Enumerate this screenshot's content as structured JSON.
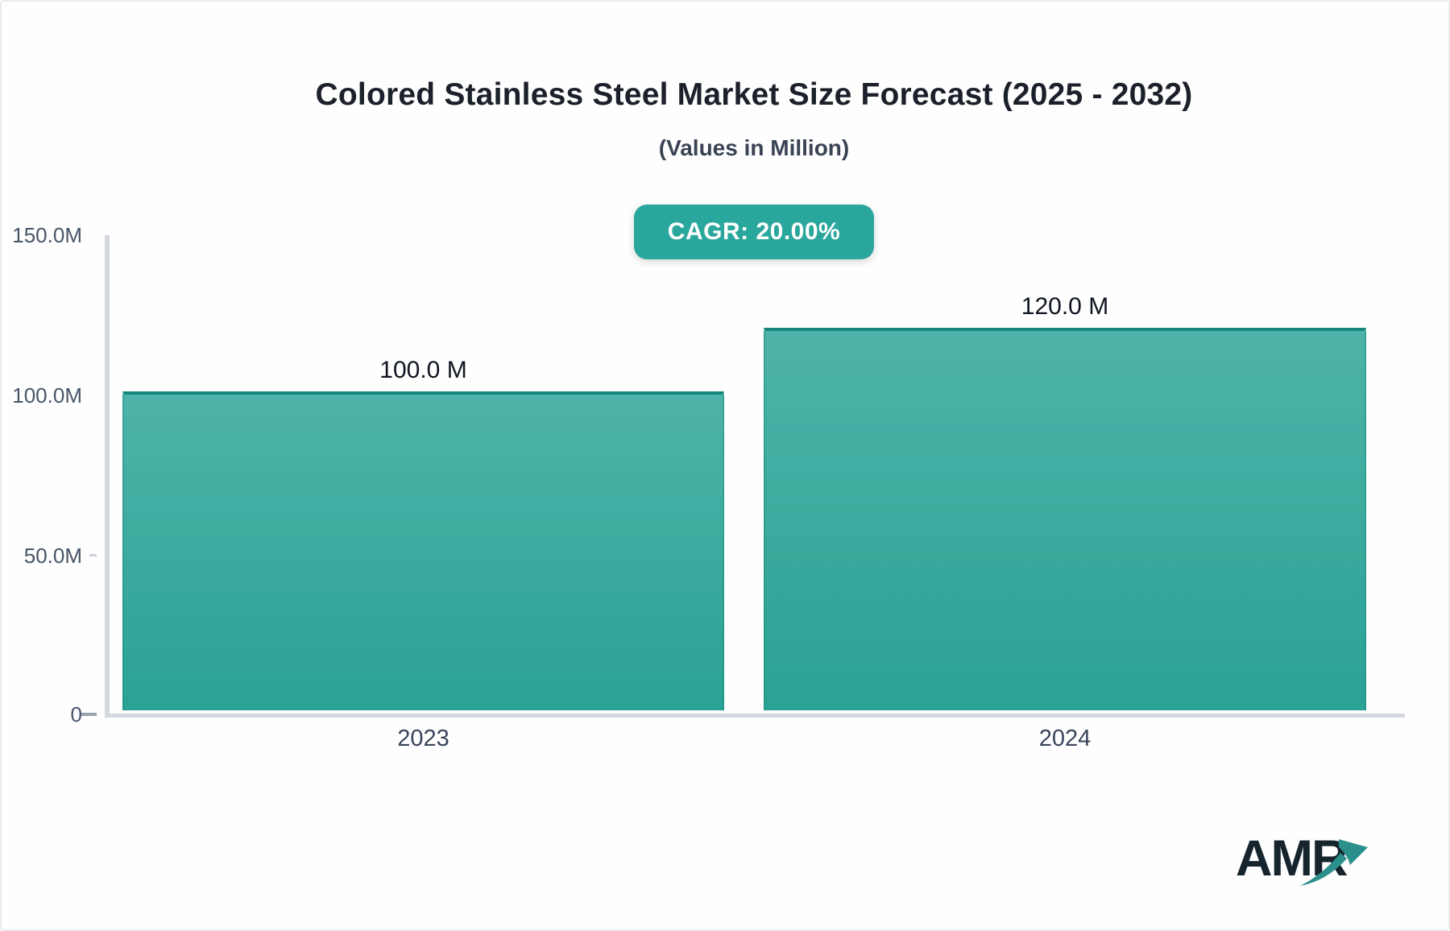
{
  "header": {
    "title": "Colored Stainless Steel Market Size Forecast (2025 - 2032)",
    "subtitle": "(Values in Million)",
    "cagr_label": "CAGR: 20.00%"
  },
  "chart_data": {
    "type": "bar",
    "title": "Colored Stainless Steel Market Size Forecast (2025 - 2032)",
    "subtitle": "(Values in Million)",
    "unit": "Million",
    "cagr_percent": 20.0,
    "categories": [
      "2023",
      "2024"
    ],
    "values": [
      100.0,
      120.0
    ],
    "value_labels": [
      "100.0 M",
      "120.0 M"
    ],
    "y_tick_labels": [
      "150.0M",
      "100.0M",
      "50.0M",
      "0"
    ],
    "ylim": [
      0,
      150
    ],
    "grid": false,
    "legend": "none"
  },
  "branding": {
    "logo_text": "AMR"
  },
  "colors": {
    "accent_teal": "#2aa79c",
    "bar_gradient_top": "#4fb3a9",
    "bar_gradient_bottom": "#2aa294",
    "bar_border_top": "#17867d",
    "axis_line": "#d4d8df",
    "title_text": "#1c202a",
    "subtitle_text": "#3a4353",
    "axis_label_text": "#485569",
    "badge_text": "#ffffff",
    "logo_text_color": "#15242d",
    "logo_arrow_color": "#2b8f8b"
  }
}
